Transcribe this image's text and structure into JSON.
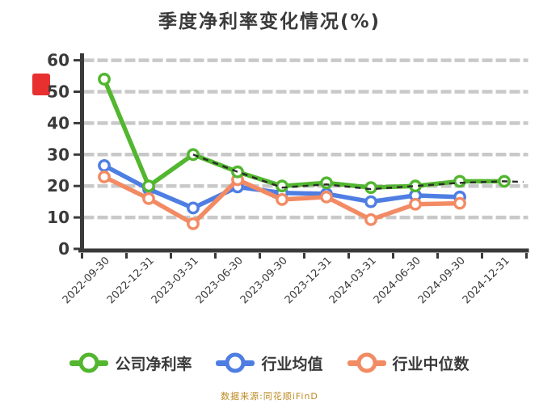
{
  "footer": {
    "credit": "数据来源:同花顺iFinD"
  },
  "red_stamp_color": "#e83030",
  "axis_color": "#3a3a3a",
  "gridline_color": "#c9c9c9",
  "chart_data": {
    "type": "line",
    "title": "季度净利率变化情况(%)",
    "xlabel": "",
    "ylabel": "",
    "ylim": [
      0,
      60
    ],
    "yticks": [
      0,
      10,
      20,
      30,
      40,
      50,
      60
    ],
    "grid": "dashed",
    "legend_position": "bottom",
    "categories": [
      "2022-09-30",
      "2022-12-31",
      "2023-03-31",
      "2023-06-30",
      "2023-09-30",
      "2023-12-31",
      "2024-03-31",
      "2024-06-30",
      "2024-09-30",
      "2024-12-31"
    ],
    "series": [
      {
        "id": "company-net-margin",
        "name": "公司净利率",
        "color": "#52b62f",
        "values": [
          54,
          20,
          30,
          24.5,
          20,
          21,
          19.5,
          20,
          21.5,
          21.5
        ]
      },
      {
        "id": "industry-mean",
        "name": "行业均值",
        "color": "#4f7ee3",
        "values": [
          26.5,
          19,
          13,
          19.7,
          17.8,
          17.5,
          15,
          17,
          16.5,
          null
        ]
      },
      {
        "id": "industry-median",
        "name": "行业中位数",
        "color": "#f28b64",
        "values": [
          22.9,
          16,
          8,
          22,
          15.7,
          16.5,
          9.3,
          14.2,
          14.5,
          null
        ]
      }
    ],
    "annotation_dashed_line": {
      "color": "#2b2b2b",
      "style": "dashed",
      "values": [
        null,
        null,
        30,
        24.5,
        19.5,
        20.5,
        19,
        20,
        21,
        21.5
      ],
      "extension_value": 21.3
    }
  }
}
